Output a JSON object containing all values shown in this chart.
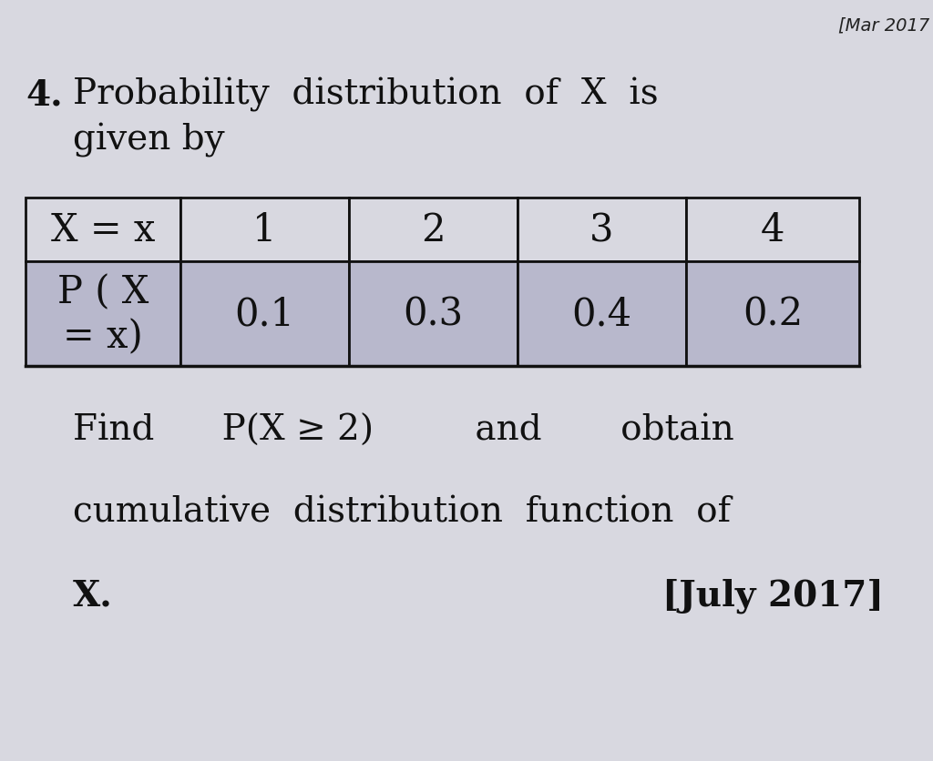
{
  "page_bg": "#d8d8e0",
  "table": {
    "header_row": [
      "X = x",
      "1",
      "2",
      "3",
      "4"
    ],
    "data_row": [
      "P ( X\n= x)",
      "0.1",
      "0.3",
      "0.4",
      "0.2"
    ],
    "header_bg": "#d8d8e0",
    "data_bg": "#b8b8cc",
    "border_color": "#111111",
    "text_color": "#111111"
  },
  "top_right_text": "[Mar 2017",
  "title_num": "4.",
  "title_line1": "Probability  distribution  of  X  is",
  "title_line2": "given by",
  "find_text": "Find      P(X ≥ 2)         and       obtain",
  "cumulative_text": "cumulative  distribution  function  of",
  "x_text": "X.",
  "july_text": "[July 2017]",
  "font_size_top": 14,
  "font_size_title": 28,
  "font_size_table_header": 30,
  "font_size_table_data": 30,
  "font_size_body": 28,
  "font_size_july": 28
}
